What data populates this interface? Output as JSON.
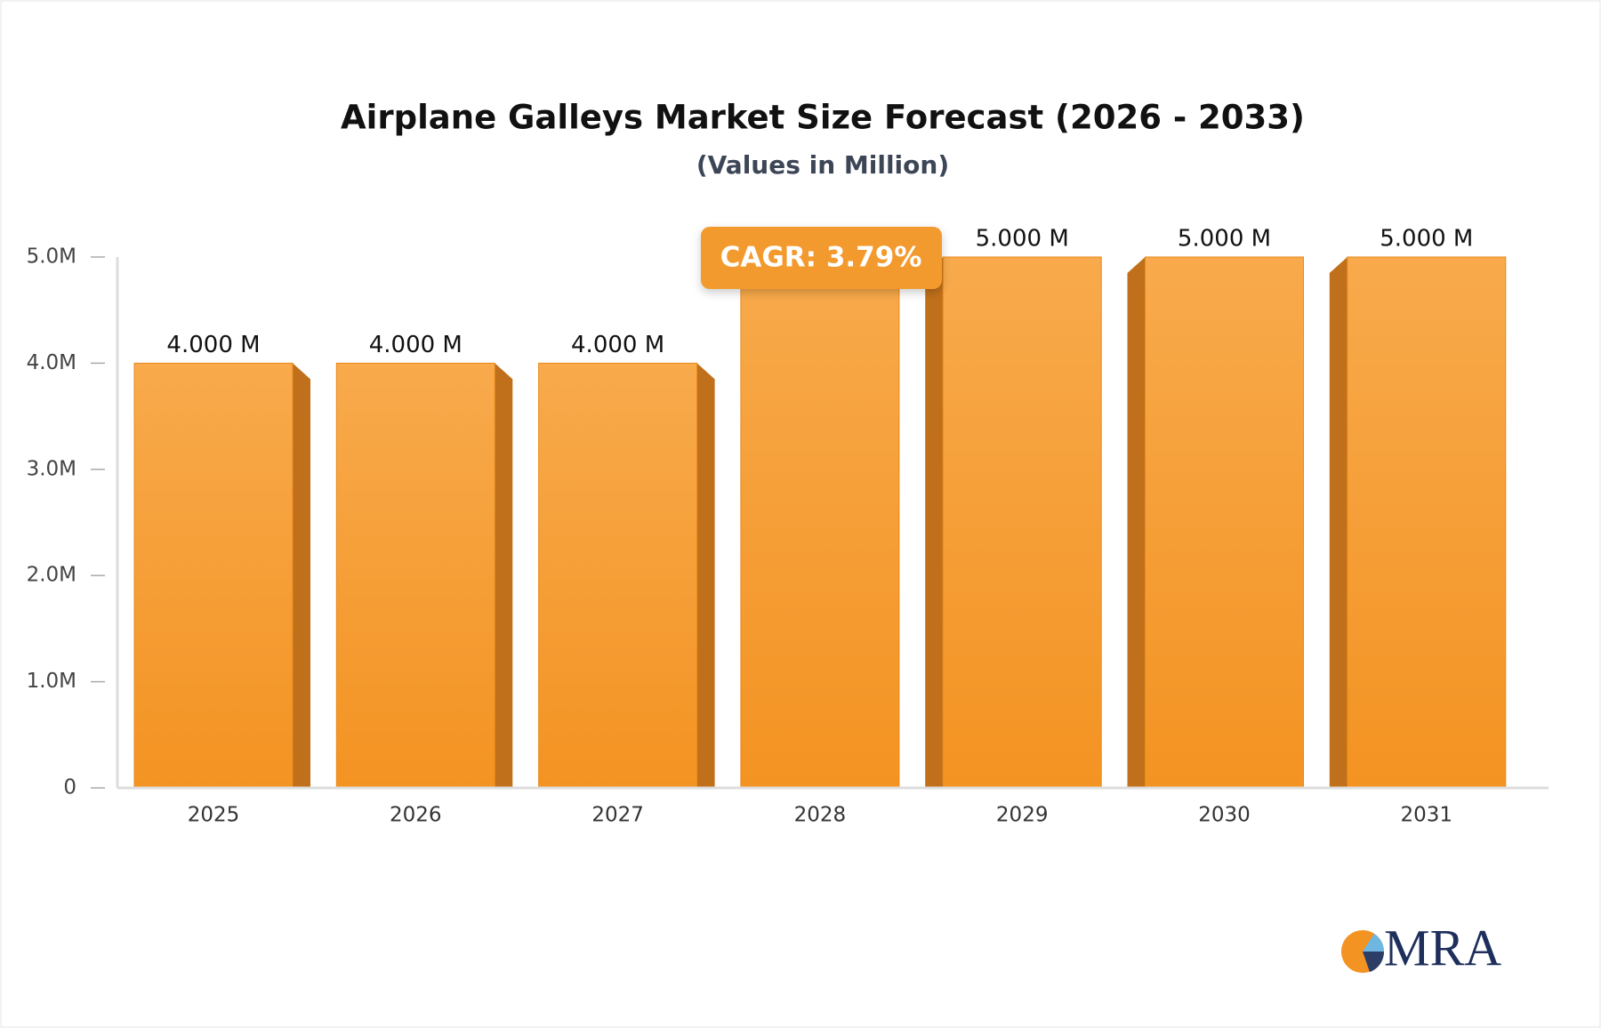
{
  "chart_data": {
    "type": "bar",
    "title": "Airplane Galleys Market Size Forecast (2026 - 2033)",
    "subtitle": "(Values in Million)",
    "categories": [
      "2025",
      "2026",
      "2027",
      "2028",
      "2029",
      "2030",
      "2031"
    ],
    "values": [
      4,
      4,
      4,
      5,
      5,
      5,
      5
    ],
    "value_labels": [
      "4.000 M",
      "4.000 M",
      "4.000 M",
      null,
      "5.000 M",
      "5.000 M",
      "5.000 M"
    ],
    "color": "#f5a03a",
    "ylim": [
      0,
      5
    ],
    "yticks": [
      0,
      {
        "value": 1,
        "label": "1.0M"
      },
      {
        "value": 2,
        "label": "2.0M"
      },
      {
        "value": 3,
        "label": "3.0M"
      },
      {
        "value": 4,
        "label": "4.0M"
      },
      {
        "value": 5,
        "label": "5.0M"
      }
    ],
    "annotation": "CAGR: 3.79%",
    "logo": "MRA"
  }
}
